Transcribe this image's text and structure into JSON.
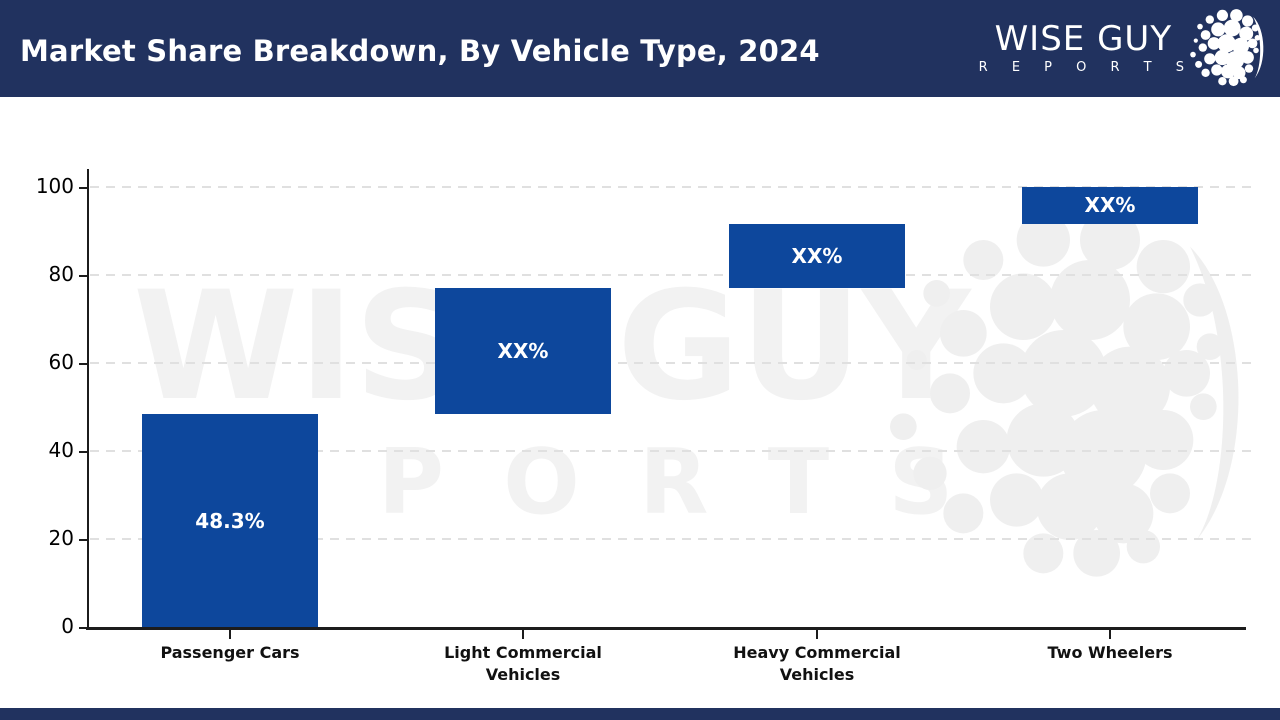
{
  "header": {
    "title": "Market Share Breakdown, By Vehicle Type, 2024",
    "logo": {
      "name": "WISE GUY",
      "sub": "R E P O R T S"
    }
  },
  "watermark": {
    "big_text": "WISE GUY",
    "sub_text": "P O R T S"
  },
  "colors": {
    "header_bg": "#21325f",
    "bar": "#0d479c",
    "bar_label": "#ffffff",
    "grid": "#e0e0e0",
    "axis": "#1c1c1c",
    "watermark": "#f2f2f2"
  },
  "chart_data": {
    "type": "bar",
    "subtype": "waterfall",
    "title": "Market Share Breakdown, By Vehicle Type, 2024",
    "unit": "%",
    "categories": [
      "Passenger Cars",
      "Light Commercial Vehicles",
      "Heavy Commercial Vehicles",
      "Two Wheelers"
    ],
    "segments": [
      {
        "category": "Passenger Cars",
        "start": 0,
        "end": 48.3,
        "label": "48.3%"
      },
      {
        "category": "Light Commercial Vehicles",
        "start": 48.3,
        "end": 77,
        "label": "XX%"
      },
      {
        "category": "Heavy Commercial Vehicles",
        "start": 77,
        "end": 91.7,
        "label": "XX%"
      },
      {
        "category": "Two Wheelers",
        "start": 91.7,
        "end": 100,
        "label": "XX%"
      }
    ],
    "yticks": [
      0,
      20,
      40,
      60,
      80,
      100
    ],
    "ylim": [
      0,
      105
    ],
    "grid": "horizontal-dashed",
    "legend": "none"
  }
}
